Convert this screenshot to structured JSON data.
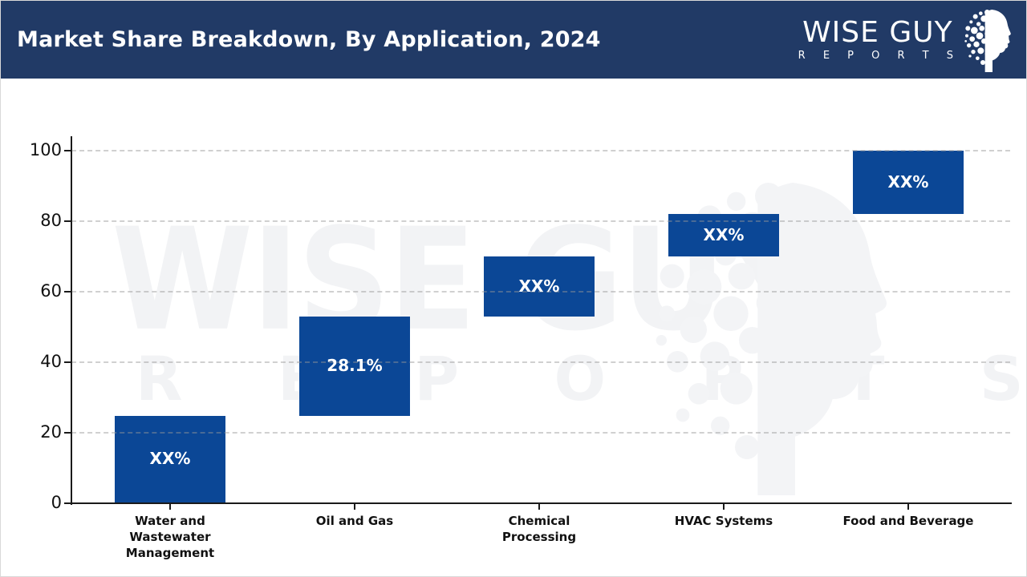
{
  "header": {
    "title": "Market Share Breakdown, By Application, 2024",
    "background_color": "#213a66",
    "logo": {
      "wordmark": "WISE GUY",
      "subtext": "R E P O R T S"
    }
  },
  "watermark": {
    "wordmark": "WISE GUY",
    "subtext": "R E P O R T S"
  },
  "chart_data": {
    "type": "bar",
    "subtype": "waterfall",
    "title": "Market Share Breakdown, By Application, 2024",
    "categories": [
      "Water and Wastewater Management",
      "Oil and Gas",
      "Chemical Processing",
      "HVAC Systems",
      "Food and Beverage"
    ],
    "categories_display": [
      "Water and\nWastewater\nManagement",
      "Oil and Gas",
      "Chemical\nProcessing",
      "HVAC Systems",
      "Food and Beverage"
    ],
    "series": [
      {
        "name": "Market share by application (cumulative waterfall, %)",
        "starts": [
          0,
          24.8,
          52.9,
          69.9,
          82.0
        ],
        "ends": [
          24.8,
          52.9,
          69.9,
          82.0,
          100.0
        ],
        "heights": [
          24.8,
          28.1,
          17.0,
          12.1,
          18.0
        ]
      }
    ],
    "bar_labels": [
      "XX%",
      "28.1%",
      "XX%",
      "XX%",
      "XX%"
    ],
    "xlabel": "",
    "ylabel": "",
    "ylim": [
      0,
      100
    ],
    "yticks": [
      0,
      20,
      40,
      60,
      80,
      100
    ],
    "grid": "horizontal-dashed",
    "legend": "none",
    "bar_color": "#0b4796",
    "bar_label_color": "#ffffff",
    "axis_color": "#1a1a1a"
  }
}
